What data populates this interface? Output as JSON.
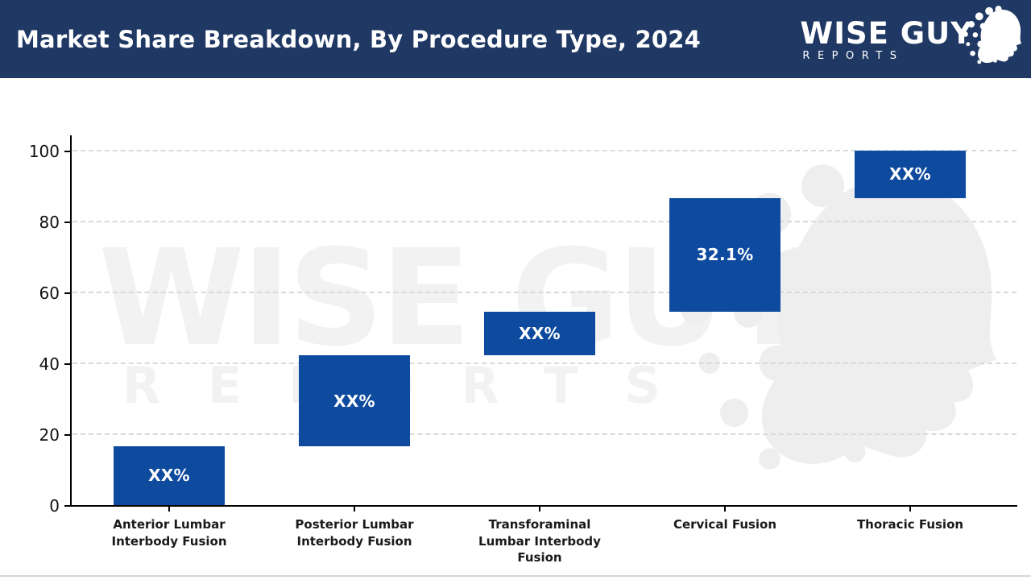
{
  "header": {
    "title": "Market Share Breakdown, By Procedure Type, 2024",
    "bg_color": "#1f3864",
    "logo": {
      "name": "WISE GUY",
      "subtitle": "REPORTS"
    }
  },
  "watermark": {
    "wordmark": "WISE GUY",
    "subtitle": "REPORTS"
  },
  "chart_data": {
    "type": "bar",
    "subtype": "floating-waterfall",
    "title": "Market Share Breakdown, By Procedure Type, 2024",
    "xlabel": "",
    "ylabel": "",
    "ylim": [
      0,
      100
    ],
    "yticks": [
      0,
      20,
      40,
      60,
      80,
      100
    ],
    "grid": "horizontal-dashed",
    "legend": "none",
    "bar_color": "#0e4a9e",
    "value_label_color": "#ffffff",
    "categories": [
      "Anterior Lumbar Interbody Fusion",
      "Posterior Lumbar Interbody Fusion",
      "Transforaminal Lumbar Interbody Fusion",
      "Cervical Fusion",
      "Thoracic Fusion"
    ],
    "segments": [
      {
        "category": "Anterior Lumbar Interbody Fusion",
        "start": 0,
        "end": 16.6,
        "value_label": "XX%"
      },
      {
        "category": "Posterior Lumbar Interbody Fusion",
        "start": 16.6,
        "end": 42.2,
        "value_label": "XX%"
      },
      {
        "category": "Transforaminal Lumbar Interbody Fusion",
        "start": 42.2,
        "end": 54.6,
        "value_label": "XX%"
      },
      {
        "category": "Cervical Fusion",
        "start": 54.6,
        "end": 86.7,
        "value_label": "32.1%"
      },
      {
        "category": "Thoracic Fusion",
        "start": 86.7,
        "end": 100,
        "value_label": "XX%"
      }
    ]
  }
}
